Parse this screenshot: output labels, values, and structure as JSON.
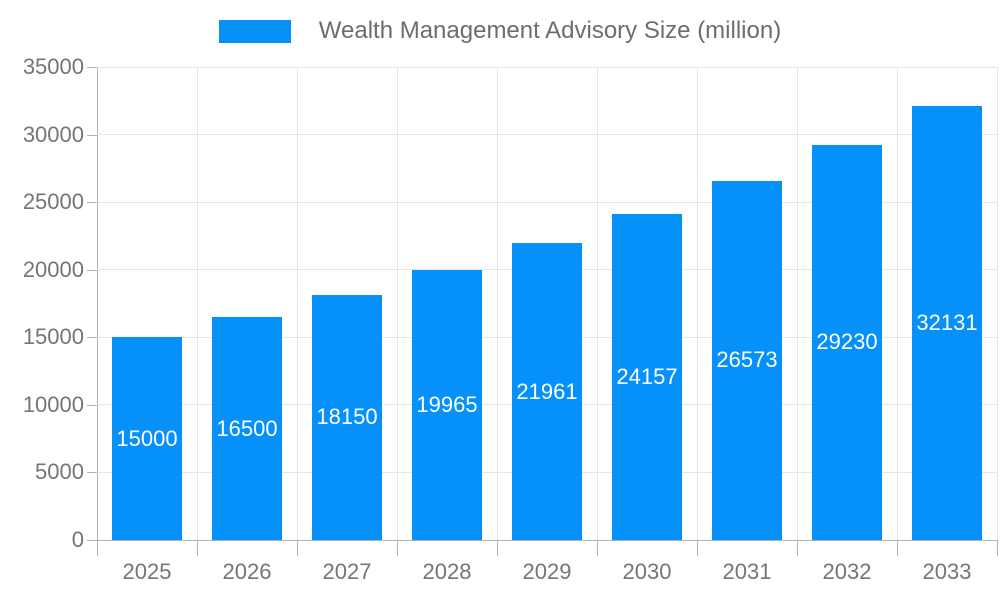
{
  "chart_data": {
    "type": "bar",
    "title": "Wealth Management Advisory Size (million)",
    "categories": [
      "2025",
      "2026",
      "2027",
      "2028",
      "2029",
      "2030",
      "2031",
      "2032",
      "2033"
    ],
    "values": [
      15000,
      16500,
      18150,
      19965,
      21961,
      24157,
      26573,
      29230,
      32131
    ],
    "value_labels": [
      "15000",
      "16500",
      "18150",
      "19965",
      "21961",
      "24157",
      "26573",
      "29230",
      "32131"
    ],
    "ytick_labels": [
      "0",
      "5000",
      "10000",
      "15000",
      "20000",
      "25000",
      "30000",
      "35000"
    ],
    "xlabel": "",
    "ylabel": "",
    "ylim": [
      0,
      35000
    ],
    "ytick_step": 5000,
    "grid": true,
    "legend_position": "top-center",
    "colors": {
      "bar": "#0590fa",
      "value_label": "#ffffff",
      "axis_label": "#757575",
      "legend_text": "#6d6d6d",
      "gridline": "#e6e6e6",
      "axis_line": "#b3b3b3",
      "background": "#ffffff"
    }
  }
}
